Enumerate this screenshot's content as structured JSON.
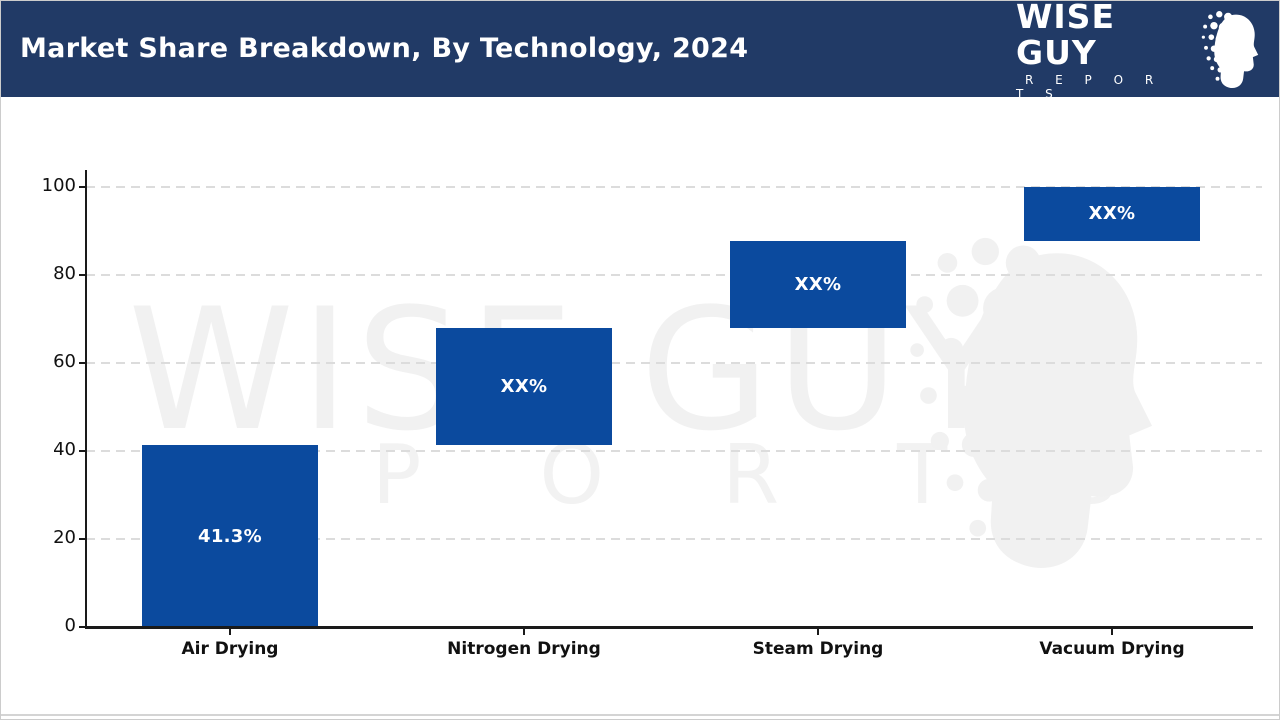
{
  "header": {
    "title": "Market Share Breakdown, By Technology, 2024",
    "logo_line1": "WISE GUY",
    "logo_line2": "R E P O R T S"
  },
  "watermark": {
    "line1": "WISE GUY",
    "line2": "P O R T S"
  },
  "chart_data": {
    "type": "bar",
    "variant": "waterfall",
    "title": "Market Share Breakdown, By Technology, 2024",
    "categories": [
      "Air Drying",
      "Nitrogen Drying",
      "Steam Drying",
      "Vacuum Drying"
    ],
    "series": [
      {
        "name": "Market Share",
        "segments": [
          {
            "category": "Air Drying",
            "start": 0,
            "end": 41.3,
            "label": "41.3%"
          },
          {
            "category": "Nitrogen Drying",
            "start": 41.3,
            "end": 68,
            "label": "XX%"
          },
          {
            "category": "Steam Drying",
            "start": 68,
            "end": 87.8,
            "label": "XX%"
          },
          {
            "category": "Vacuum Drying",
            "start": 87.8,
            "end": 100,
            "label": "XX%"
          }
        ]
      }
    ],
    "y_ticks": [
      0,
      20,
      40,
      60,
      80,
      100
    ],
    "ylim": [
      0,
      105
    ],
    "xlabel": "",
    "ylabel": "",
    "grid": "horizontal-dashed",
    "legend_position": "none",
    "colors": {
      "bar": "#0B4A9E",
      "grid": "#DCDCDC",
      "axis": "#1A1A1A",
      "bar_label_text": "#FFFFFF"
    }
  },
  "colors": {
    "header_bg": "#213A66",
    "page_bg": "#FFFFFF",
    "border": "#CCCCCC",
    "watermark": "#F1F1F1"
  }
}
